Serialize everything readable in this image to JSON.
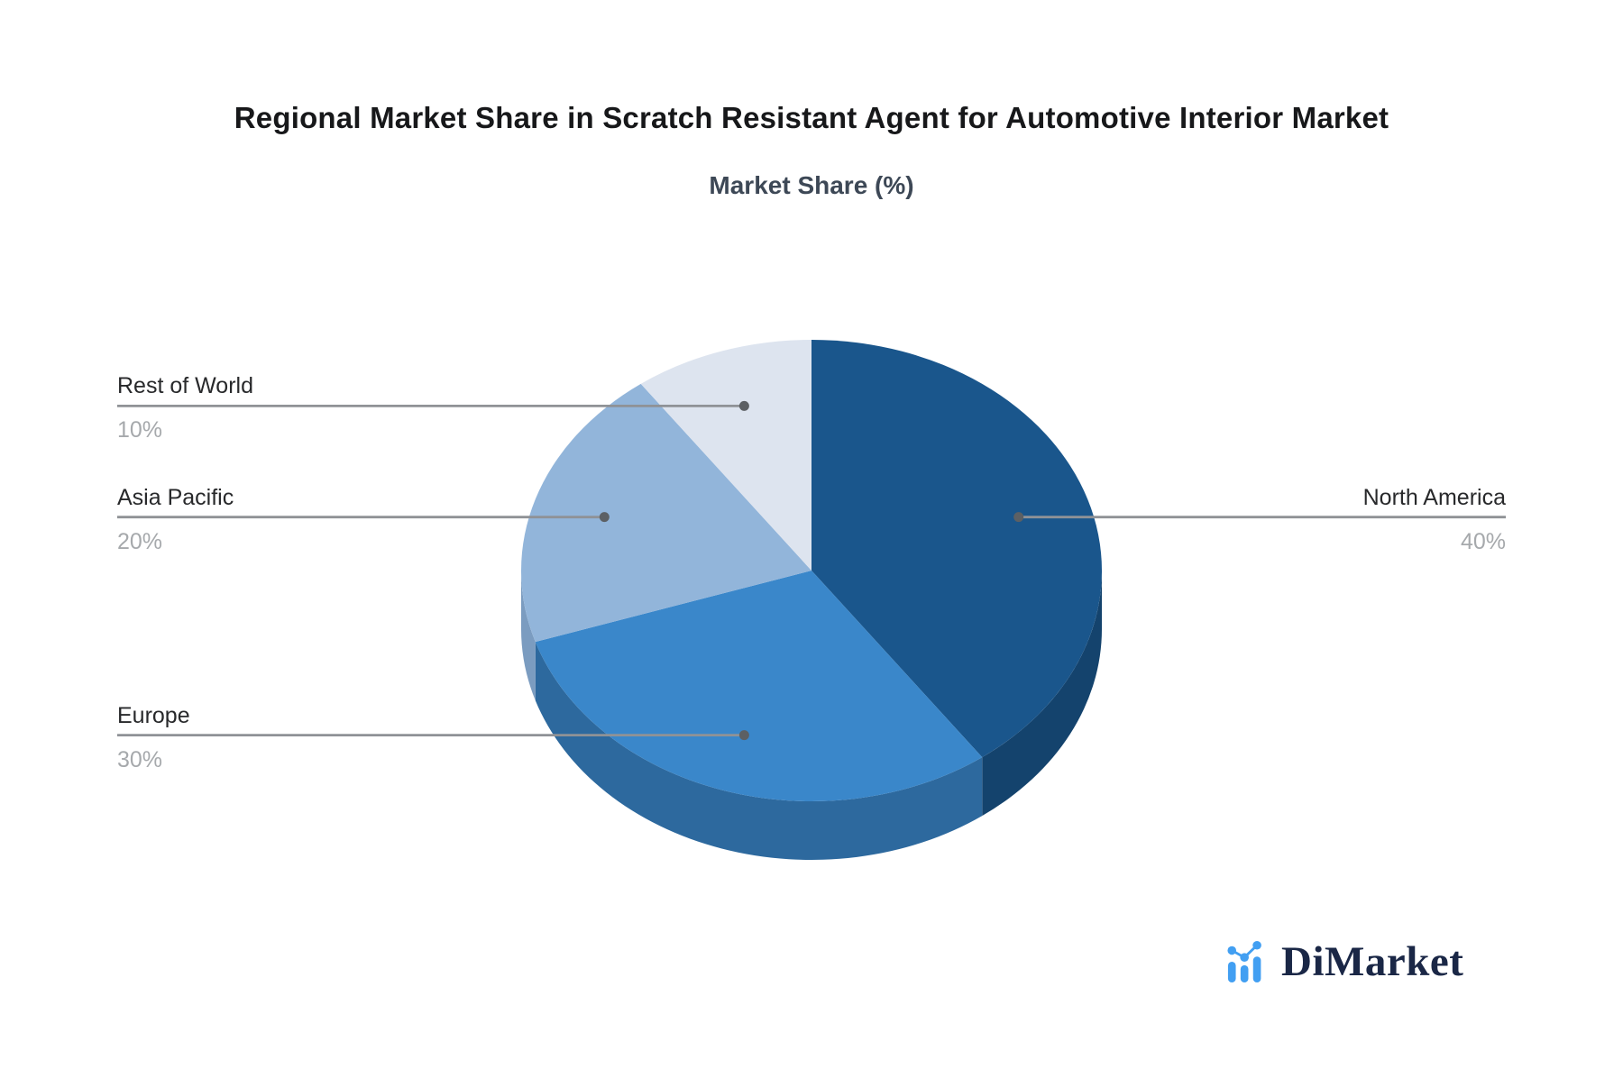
{
  "chart_data": {
    "type": "pie",
    "effect": "3d",
    "title": "Regional Market Share in Scratch Resistant Agent for Automotive Interior Market",
    "subtitle": "Market Share (%)",
    "unit": "%",
    "start_angle_deg": 0,
    "direction": "clockwise",
    "legend": "none",
    "labels_style": "leader-lines",
    "series": [
      {
        "name": "North America",
        "value": 40,
        "pct_label": "40%",
        "color": "#1a568c",
        "side_color": "#14436d"
      },
      {
        "name": "Europe",
        "value": 30,
        "pct_label": "30%",
        "color": "#3a87ca",
        "side_color": "#2d699e"
      },
      {
        "name": "Asia Pacific",
        "value": 20,
        "pct_label": "20%",
        "color": "#92b5da",
        "side_color": "#7b9cc0"
      },
      {
        "name": "Rest of World",
        "value": 10,
        "pct_label": "10%",
        "color": "#dde4ef",
        "side_color": "#b9c3d4"
      }
    ],
    "leader_line_color": "#8f9296",
    "leader_dot_color": "#5c6064",
    "label_text_color": "#28292b",
    "pct_text_color": "#a6a9ac"
  },
  "branding": {
    "logo_text": "DiMarket",
    "logo_text_color": "#1a2746",
    "logo_icon": "bar-chart-with-trend-dots",
    "logo_icon_color": "#429ff2"
  }
}
